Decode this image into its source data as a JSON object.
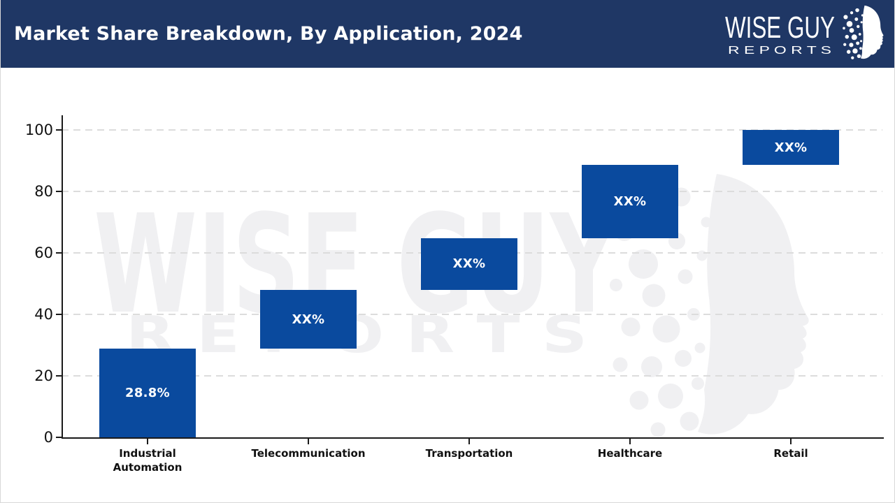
{
  "header": {
    "title": "Market Share Breakdown, By Application, 2024",
    "logo": {
      "line1": "WISE GUY",
      "line2": "R E P O R T S"
    }
  },
  "watermark": {
    "line1": "WISE GUY",
    "line2": "R E P O R T S"
  },
  "colors": {
    "header_bg": "#1F3765",
    "bar": "#0A4A9E",
    "bar_label_text": "#FFFFFF",
    "axis": "#1A1A1A",
    "gridline": "#DCDCDC",
    "watermark": "#F0F0F2"
  },
  "chart_data": {
    "type": "bar",
    "subtype": "floating-waterfall",
    "title": "Market Share Breakdown, By Application, 2024",
    "categories": [
      "Industrial\nAutomation",
      "Telecommunication",
      "Transportation",
      "Healthcare",
      "Retail"
    ],
    "segments": [
      {
        "category": "Industrial Automation",
        "start": 0,
        "end": 28.8,
        "label": "28.8%"
      },
      {
        "category": "Telecommunication",
        "start": 28.8,
        "end": 48.0,
        "label": "XX%"
      },
      {
        "category": "Transportation",
        "start": 48.0,
        "end": 64.8,
        "label": "XX%"
      },
      {
        "category": "Healthcare",
        "start": 64.8,
        "end": 88.6,
        "label": "XX%"
      },
      {
        "category": "Retail",
        "start": 88.6,
        "end": 100.0,
        "label": "XX%"
      }
    ],
    "ylim": [
      0,
      100
    ],
    "yticks": [
      0,
      20,
      40,
      60,
      80,
      100
    ],
    "xlabel": "",
    "ylabel": "",
    "grid": "horizontal-dashed",
    "legend": "none",
    "bar_color": "#0A4A9E",
    "value_label_color": "#FFFFFF"
  }
}
